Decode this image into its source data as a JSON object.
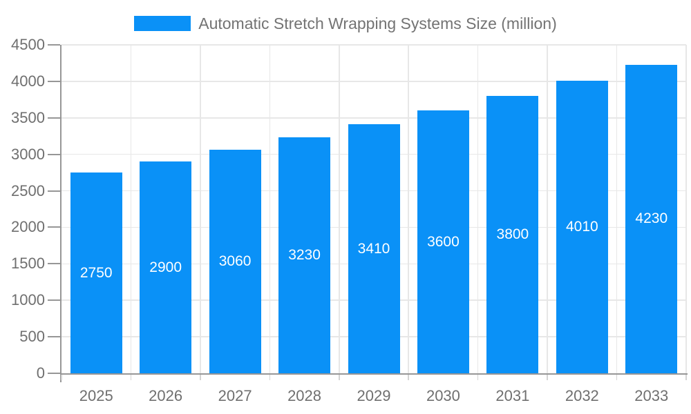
{
  "legend": {
    "label": "Automatic Stretch Wrapping Systems Size (million)"
  },
  "colors": {
    "bar": "#0a91f7",
    "axis": "#969696",
    "grid": "#e7e7e7",
    "x_tick": "#d4d4d4",
    "tick_label": "#6f6f6f",
    "legend_text": "#737373",
    "bar_value_label": "#ffffff",
    "background": "#ffffff"
  },
  "chart_data": {
    "type": "bar",
    "title": "",
    "legend_entries": [
      "Automatic Stretch Wrapping Systems Size (million)"
    ],
    "legend_position": "top-center",
    "categories": [
      "2025",
      "2026",
      "2027",
      "2028",
      "2029",
      "2030",
      "2031",
      "2032",
      "2033"
    ],
    "values": [
      2750,
      2900,
      3060,
      3230,
      3410,
      3600,
      3800,
      4010,
      4230
    ],
    "xlabel": "",
    "ylabel": "",
    "ylim": [
      0,
      4500
    ],
    "yticks": [
      0,
      500,
      1000,
      1500,
      2000,
      2500,
      3000,
      3500,
      4000,
      4500
    ],
    "grid": true,
    "bar_label_position": "inside-center",
    "bar_label_color": "#ffffff"
  }
}
